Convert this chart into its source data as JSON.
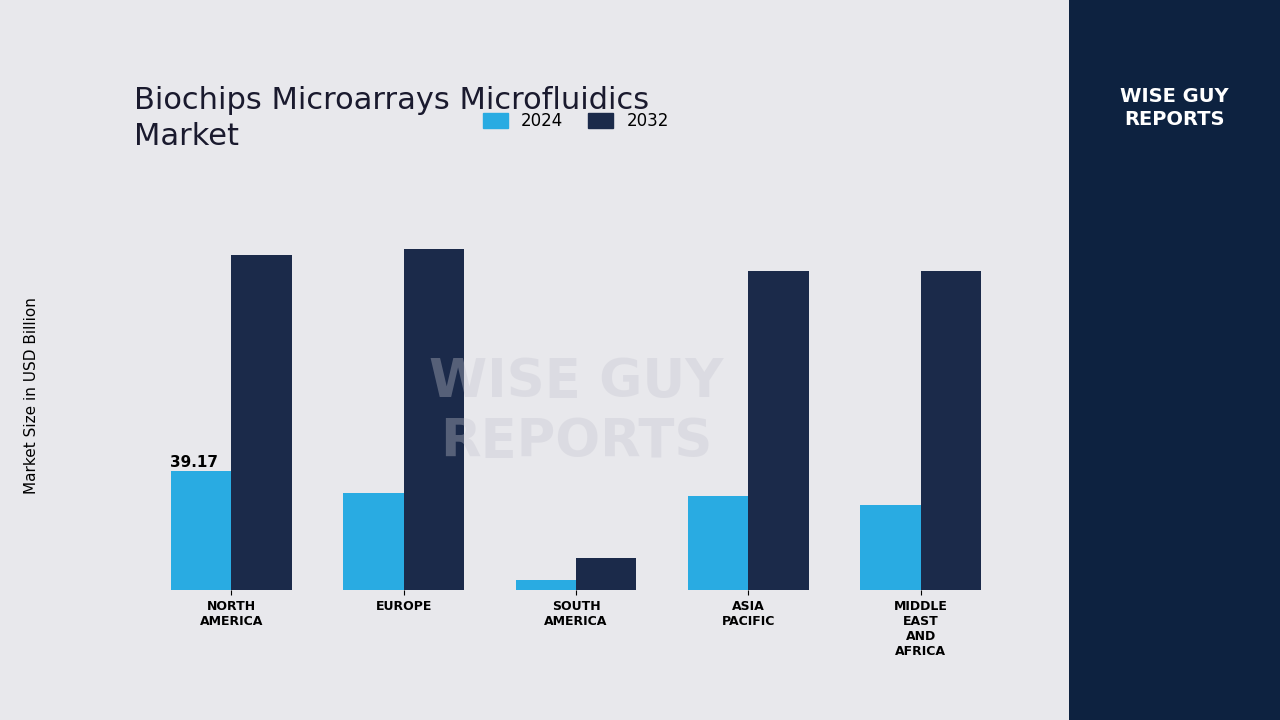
{
  "title": "Biochips Microarrays Microfluidics\nMarket",
  "ylabel": "Market Size in USD Billion",
  "categories": [
    "NORTH\nAMERICA",
    "EUROPE",
    "SOUTH\nAMERICA",
    "ASIA\nPACIFIC",
    "MIDDLE\nEAST\nAND\nAFRICA"
  ],
  "values_2024": [
    39.17,
    32.0,
    3.5,
    31.0,
    28.0
  ],
  "values_2032": [
    110.0,
    112.0,
    10.5,
    105.0,
    105.0
  ],
  "color_2024": "#29ABE2",
  "color_2032": "#1B2A4A",
  "annotation_label": "39.17",
  "annotation_bar_idx": 0,
  "background_color": "#E8E8EC",
  "right_panel_color": "#0D2240",
  "title_color": "#1A1A2E",
  "bar_width": 0.35,
  "legend_labels": [
    "2024",
    "2032"
  ],
  "watermark_text": "WISE GUY\nREPORTS",
  "ylim": [
    0,
    130
  ]
}
